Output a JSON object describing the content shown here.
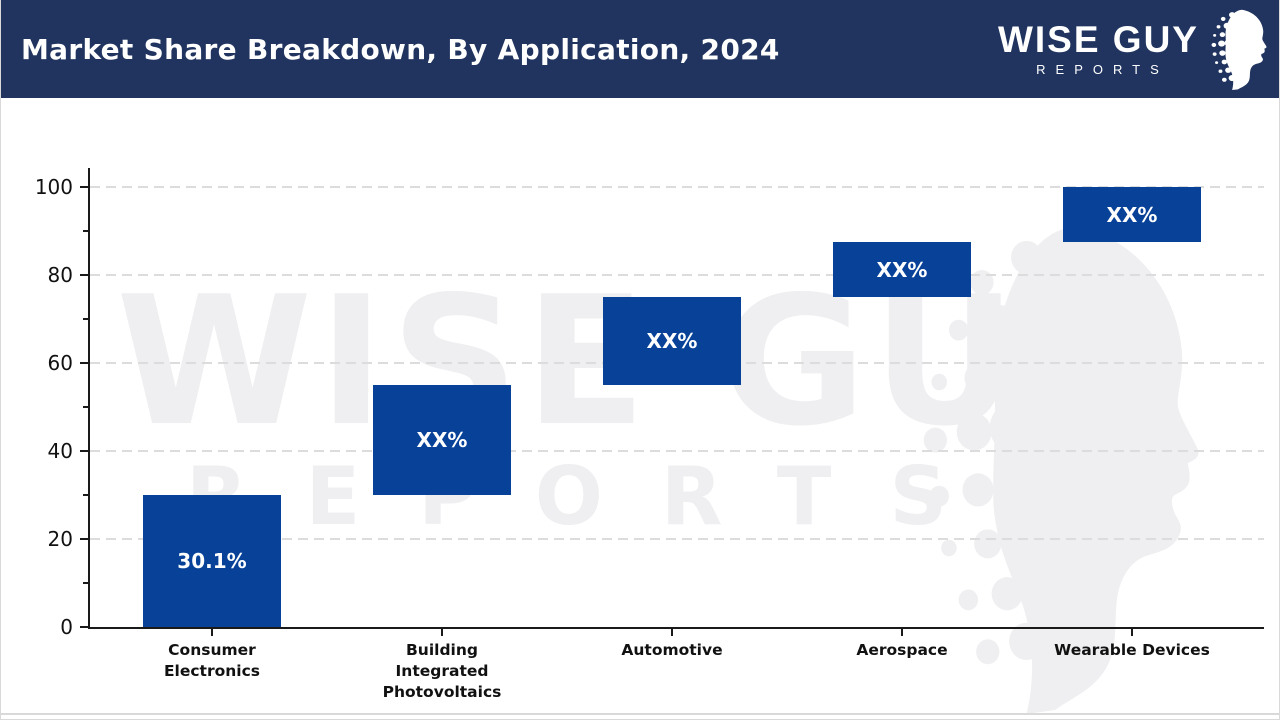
{
  "header": {
    "title": "Market Share Breakdown, By Application, 2024",
    "logo": {
      "line1": "WISE GUY",
      "line2": "REPORTS"
    }
  },
  "watermark": {
    "line1": "WISE GUY",
    "line2": "REPORTS"
  },
  "chart_data": {
    "type": "bar",
    "subtype": "waterfall",
    "title": "Market Share Breakdown, By Application, 2024",
    "categories": [
      "Consumer\nElectronics",
      "Building\nIntegrated\nPhotovoltaics",
      "Automotive",
      "Aerospace",
      "Wearable Devices"
    ],
    "segments": [
      {
        "category": "Consumer Electronics",
        "start": 0,
        "end": 30.1,
        "label": "30.1%"
      },
      {
        "category": "Building Integrated Photovoltaics",
        "start": 30.1,
        "end": 55,
        "label": "XX%"
      },
      {
        "category": "Automotive",
        "start": 55,
        "end": 75,
        "label": "XX%"
      },
      {
        "category": "Aerospace",
        "start": 75,
        "end": 87.5,
        "label": "XX%"
      },
      {
        "category": "Wearable Devices",
        "start": 87.5,
        "end": 100,
        "label": "XX%"
      }
    ],
    "ylim": [
      0,
      100
    ],
    "yticks": [
      0,
      20,
      40,
      60,
      80,
      100
    ],
    "yticks_minor": [
      10,
      30,
      50,
      70,
      90
    ],
    "grid": "horizontal-dashed",
    "legend": "none",
    "colors": {
      "bar": "#084298",
      "bar_label": "#ffffff",
      "header_bg": "#20345f",
      "axis": "#1a1a1a",
      "gridline": "#dcdcdc",
      "watermark": "#efeff2"
    }
  }
}
